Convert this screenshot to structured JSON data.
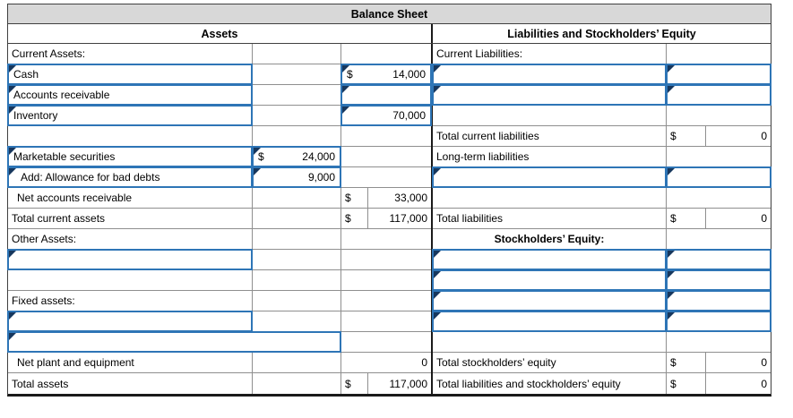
{
  "title": "Balance Sheet",
  "headers": {
    "assets": "Assets",
    "liabilities": "Liabilities and Stockholders’ Equity"
  },
  "assets": {
    "current_heading": "Current Assets:",
    "cash": {
      "label": "Cash",
      "dollar": "$",
      "amount": "14,000"
    },
    "accounts_receivable": {
      "label": "Accounts receivable",
      "amount": ""
    },
    "inventory": {
      "label": "Inventory",
      "amount": "70,000"
    },
    "marketable_securities": {
      "label": "Marketable securities",
      "dollar": "$",
      "amount": "24,000"
    },
    "allowance_bad_debts": {
      "label": "Add: Allowance for bad debts",
      "amount": "9,000"
    },
    "net_accounts_receivable": {
      "label": "Net accounts receivable",
      "dollar": "$",
      "amount": "33,000"
    },
    "total_current_assets": {
      "label": "Total current assets",
      "dollar": "$",
      "amount": "117,000"
    },
    "other_heading": "Other Assets:",
    "fixed_heading": "Fixed assets:",
    "net_plant_equipment": {
      "label": "Net plant and equipment",
      "amount": "0"
    },
    "total_assets": {
      "label": "Total assets",
      "dollar": "$",
      "amount": "117,000"
    }
  },
  "liabilities": {
    "current_heading": "Current Liabilities:",
    "total_current_liabilities": {
      "label": "Total current liabilities",
      "dollar": "$",
      "amount": "0"
    },
    "long_term_heading": "Long-term liabilities",
    "total_liabilities": {
      "label": "Total liabilities",
      "dollar": "$",
      "amount": "0"
    },
    "equity_heading": "Stockholders’ Equity:",
    "total_stockholders_equity": {
      "label": "Total stockholders’ equity",
      "dollar": "$",
      "amount": "0"
    },
    "total_liabilities_equity": {
      "label": "Total liabilities and stockholders’ equity",
      "dollar": "$",
      "amount": "0"
    }
  },
  "colors": {
    "input_border": "#2e75b6",
    "cell_marker": "#17375d",
    "title_background": "#d8d8d8",
    "gridline": "#8f8f8f"
  },
  "icons": {
    "input_marker": "filled-triangle-top-left-corner"
  }
}
